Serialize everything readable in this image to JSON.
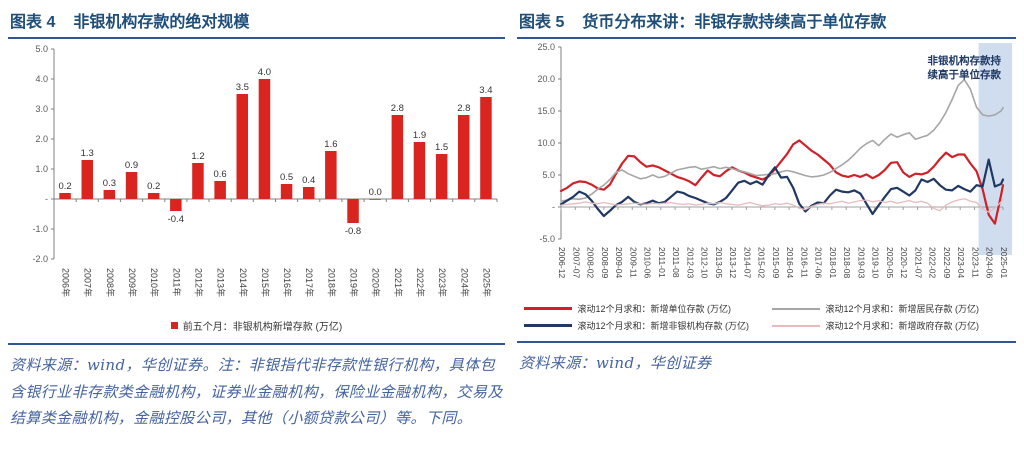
{
  "figure4": {
    "tag": "图表 4",
    "title": "非银机构存款的绝对规模",
    "source_note": "资料来源：wind，华创证券。注：非银指代非存款性银行机构，具体包含银行业非存款类金融机构，证券业金融机构，保险业金融机构，交易及结算类金融机构，金融控股公司，其他（小额贷款公司）等。下同。"
  },
  "figure5": {
    "tag": "图表 5",
    "title": "货币分布来讲：非银存款持续高于单位存款",
    "source_note": "资料来源：wind，华创证券"
  },
  "colors": {
    "title_blue": "#1f4e79",
    "rule_blue": "#2f5597",
    "note_blue": "#44639f",
    "bar_red": "#d9241f",
    "line_red": "#cf2127",
    "line_navy": "#1f3864",
    "line_gray": "#a6a6a6",
    "line_pink": "#e8babd",
    "highlight_band": "#cfddef",
    "axis_gray": "#808080",
    "tick_text": "#595959"
  },
  "chart_data": [
    {
      "type": "bar",
      "title": "非银机构存款的绝对规模",
      "legend": "前五个月：非银机构新增存款 (万亿)",
      "categories": [
        "2006年",
        "2007年",
        "2008年",
        "2009年",
        "2010年",
        "2011年",
        "2012年",
        "2013年",
        "2014年",
        "2015年",
        "2016年",
        "2017年",
        "2018年",
        "2019年",
        "2020年",
        "2021年",
        "2022年",
        "2023年",
        "2024年",
        "2025年"
      ],
      "values": [
        0.2,
        1.3,
        0.3,
        0.9,
        0.2,
        -0.4,
        1.2,
        0.6,
        3.5,
        4.0,
        0.5,
        0.4,
        1.6,
        -0.8,
        0.0,
        2.8,
        1.9,
        1.5,
        2.8,
        3.4
      ],
      "bar_color": "#d9241f",
      "ylim": [
        -2,
        5
      ],
      "ytick_step": 1,
      "zero_tick_label": "-",
      "data_labels": true,
      "grid": false
    },
    {
      "type": "line",
      "title": "货币分布来讲：非银存款持续高于单位存款",
      "x_start": "2006-12",
      "x_end": "2025-01",
      "months_total": 218,
      "sample_step_months": 3,
      "last_sample_month": 217,
      "x_labels": [
        "2006-12",
        "2007-07",
        "2008-02",
        "2008-09",
        "2009-04",
        "2009-11",
        "2010-06",
        "2011-01",
        "2011-08",
        "2012-03",
        "2012-10",
        "2013-05",
        "2013-12",
        "2014-07",
        "2015-02",
        "2015-09",
        "2016-04",
        "2016-11",
        "2017-06",
        "2018-01",
        "2018-08",
        "2019-03",
        "2019-10",
        "2020-05",
        "2020-12",
        "2021-07",
        "2022-02",
        "2022-09",
        "2023-04",
        "2023-11",
        "2024-06",
        "2025-01"
      ],
      "x_label_interval_months": 7,
      "ylim": [
        -5,
        25
      ],
      "ytick_step": 5,
      "zero_tick_label": "-",
      "legend_position": "bottom",
      "highlight_region": {
        "from_month": 205,
        "color": "#cfddef"
      },
      "annotation": {
        "lines": [
          "非银机构存款持",
          "续高于单位存款"
        ],
        "color": "#1f3864"
      },
      "series": [
        {
          "name": "滚动12个月求和：新增单位存款 (万亿)",
          "color": "#cf2127",
          "width": 2.2,
          "values": [
            2.5,
            3.0,
            3.7,
            4.0,
            3.9,
            3.5,
            2.9,
            2.7,
            3.5,
            5.2,
            6.8,
            8.0,
            7.9,
            7.0,
            6.3,
            6.5,
            6.2,
            5.7,
            5.2,
            4.7,
            4.4,
            4.0,
            3.4,
            4.6,
            5.7,
            5.0,
            4.8,
            5.6,
            6.2,
            5.7,
            5.4,
            4.9,
            4.6,
            4.3,
            4.8,
            5.9,
            7.1,
            8.3,
            9.8,
            10.4,
            9.6,
            8.8,
            8.2,
            7.4,
            6.6,
            5.4,
            4.9,
            4.7,
            5.0,
            4.7,
            5.1,
            4.5,
            5.0,
            5.8,
            6.9,
            7.0,
            5.4,
            4.7,
            5.2,
            5.1,
            5.4,
            6.3,
            7.5,
            8.5,
            7.8,
            8.2,
            8.2,
            6.8,
            5.6,
            2.8,
            -1.2,
            -2.6,
            1.8,
            3.4
          ]
        },
        {
          "name": "滚动12个月求和：新增居民存款 (万亿)",
          "color": "#a6a6a6",
          "width": 1.6,
          "values": [
            0.9,
            1.1,
            1.3,
            1.2,
            1.4,
            2.0,
            2.8,
            3.4,
            4.3,
            5.4,
            5.8,
            5.2,
            4.8,
            4.4,
            4.6,
            5.0,
            4.6,
            4.8,
            5.3,
            5.8,
            6.0,
            6.2,
            6.3,
            5.9,
            6.1,
            6.3,
            6.0,
            6.2,
            6.0,
            5.7,
            5.5,
            5.2,
            4.9,
            5.0,
            5.1,
            5.2,
            5.5,
            5.7,
            5.5,
            5.2,
            4.9,
            4.7,
            4.8,
            5.0,
            5.4,
            6.0,
            6.6,
            7.3,
            8.2,
            9.2,
            9.9,
            10.4,
            9.6,
            10.6,
            11.4,
            10.9,
            11.3,
            11.6,
            10.6,
            10.9,
            11.2,
            12.0,
            13.2,
            14.8,
            16.8,
            19.0,
            19.9,
            18.4,
            15.6,
            14.4,
            14.2,
            14.4,
            15.0,
            15.5
          ]
        },
        {
          "name": "滚动12个月求和：新增非银机构存款 (万亿)",
          "color": "#1f3864",
          "width": 2.2,
          "values": [
            0.4,
            1.0,
            1.6,
            2.4,
            2.0,
            1.0,
            -0.3,
            -1.4,
            -0.6,
            0.3,
            0.8,
            1.6,
            0.8,
            0.4,
            0.6,
            1.0,
            0.6,
            0.8,
            1.6,
            2.4,
            2.2,
            1.7,
            1.4,
            1.0,
            0.6,
            0.4,
            0.8,
            1.4,
            2.6,
            3.8,
            4.1,
            3.6,
            4.0,
            3.5,
            5.0,
            6.2,
            4.6,
            4.7,
            3.0,
            0.5,
            -0.7,
            0.2,
            0.7,
            0.6,
            1.8,
            2.7,
            2.4,
            2.3,
            2.6,
            2.1,
            0.5,
            -1.1,
            0.3,
            1.6,
            2.8,
            3.0,
            2.4,
            1.8,
            2.6,
            4.3,
            3.9,
            4.4,
            3.4,
            2.7,
            2.6,
            3.3,
            2.8,
            2.4,
            3.4,
            3.2,
            7.4,
            3.2,
            3.6,
            4.3
          ]
        },
        {
          "name": "滚动12个月求和：新增政府存款 (万亿)",
          "color": "#e8babd",
          "width": 1.3,
          "values": [
            0.3,
            0.4,
            0.5,
            0.6,
            0.8,
            0.6,
            0.5,
            0.7,
            0.5,
            0.3,
            0.4,
            0.5,
            0.6,
            0.5,
            0.4,
            0.6,
            0.5,
            0.6,
            0.7,
            0.5,
            0.4,
            0.5,
            0.3,
            0.4,
            0.6,
            0.5,
            0.7,
            0.5,
            0.4,
            0.3,
            0.5,
            0.7,
            0.4,
            0.2,
            0.3,
            0.5,
            0.4,
            0.6,
            0.3,
            -0.2,
            -0.4,
            0.1,
            0.4,
            0.6,
            0.5,
            0.7,
            0.9,
            0.6,
            0.8,
            1.0,
            1.1,
            0.8,
            1.0,
            0.7,
            0.9,
            0.6,
            0.8,
            1.0,
            0.7,
            0.9,
            0.6,
            -0.2,
            -0.6,
            0.3,
            0.8,
            1.1,
            1.3,
            0.9,
            0.7,
            -0.3,
            -0.8,
            -0.2,
            0.8,
            1.2
          ]
        }
      ]
    }
  ]
}
